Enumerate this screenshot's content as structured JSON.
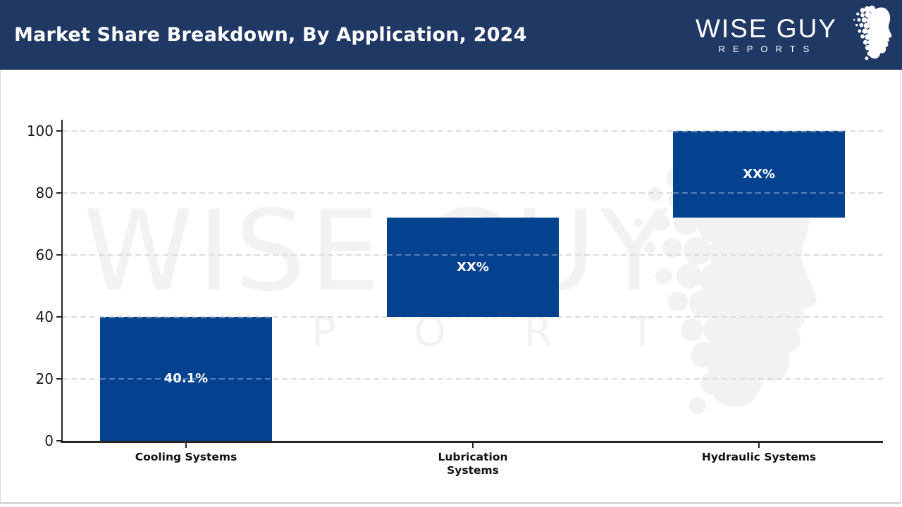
{
  "header": {
    "title": "Market Share Breakdown, By Application, 2024",
    "logo": {
      "line1": "WISE GUY",
      "line2": "REPORTS"
    }
  },
  "watermark": {
    "line1": "WISE GUY",
    "line2": "R E P O R T S"
  },
  "chart_data": {
    "type": "bar",
    "subtype": "floating-waterfall",
    "title": "Market Share Breakdown, By Application, 2024",
    "categories": [
      "Cooling Systems",
      "Lubrication\nSystems",
      "Hydraulic Systems"
    ],
    "bars": [
      {
        "category": "Cooling Systems",
        "start": 0,
        "end": 40.1,
        "segment_value": 40.1,
        "label": "40.1%"
      },
      {
        "category": "Lubrication Systems",
        "start": 40.1,
        "end": 72.0,
        "segment_value": 31.9,
        "label": "XX%"
      },
      {
        "category": "Hydraulic Systems",
        "start": 72.0,
        "end": 100,
        "segment_value": 28.0,
        "label": "XX%"
      }
    ],
    "yticks": [
      0,
      20,
      40,
      60,
      80,
      100
    ],
    "ylim": [
      0,
      100
    ],
    "xlabel": "",
    "ylabel": "",
    "grid": "horizontal-dashed",
    "legend": "none",
    "bar_color": "#04418f",
    "bar_label_color": "#ffffff"
  },
  "colors": {
    "header_bg": "#203864",
    "bar": "#04418f",
    "grid": "#dcdcdc",
    "axis": "#262626",
    "watermark": "#f2f2f2"
  }
}
